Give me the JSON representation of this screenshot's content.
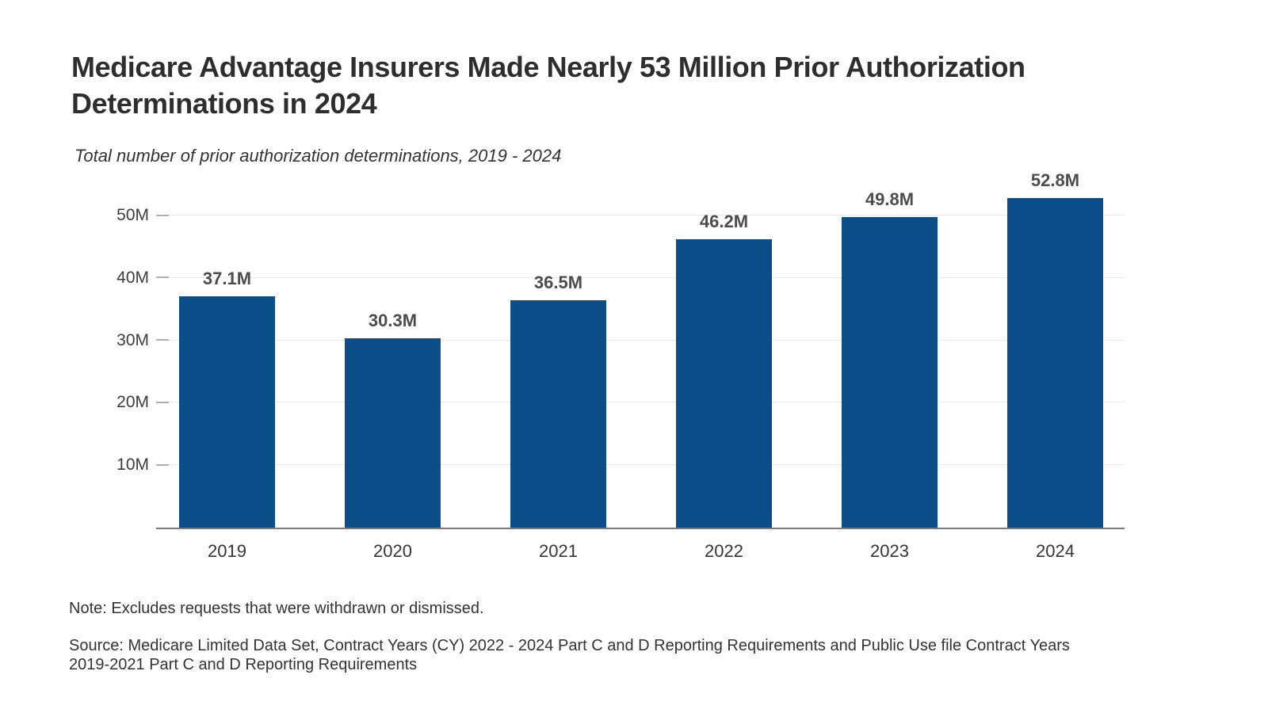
{
  "header": {
    "title": "Medicare Advantage Insurers Made Nearly 53 Million Prior Authorization Determinations in 2024",
    "subtitle": "Total number of prior authorization determinations, 2019 - 2024"
  },
  "chart_data": {
    "type": "bar",
    "title": "Medicare Advantage Insurers Made Nearly 53 Million Prior Authorization Determinations in 2024",
    "subtitle": "Total number of prior authorization determinations, 2019 - 2024",
    "categories": [
      "2019",
      "2020",
      "2021",
      "2022",
      "2023",
      "2024"
    ],
    "values": [
      37.1,
      30.3,
      36.5,
      46.2,
      49.8,
      52.8
    ],
    "value_labels": [
      "37.1M",
      "30.3M",
      "36.5M",
      "46.2M",
      "49.8M",
      "52.8M"
    ],
    "unit": "millions of determinations",
    "xlabel": "",
    "ylabel": "",
    "ylim": [
      0,
      55.1
    ],
    "ytick_values": [
      10,
      20,
      30,
      40,
      50
    ],
    "ytick_labels": [
      "10M",
      "20M",
      "30M",
      "40M",
      "50M"
    ],
    "grid": true,
    "legend": false,
    "bar_color": "#0B4E89",
    "axis_line_color": "#7b7b7b",
    "gridline_color": "#e8e8e8"
  },
  "footer": {
    "note": "Note: Excludes requests that were withdrawn or dismissed.",
    "source": "Source: Medicare Limited Data Set, Contract Years (CY) 2022 - 2024 Part C and D Reporting Requirements and Public Use file Contract Years 2019-2021 Part C and D Reporting Requirements"
  }
}
